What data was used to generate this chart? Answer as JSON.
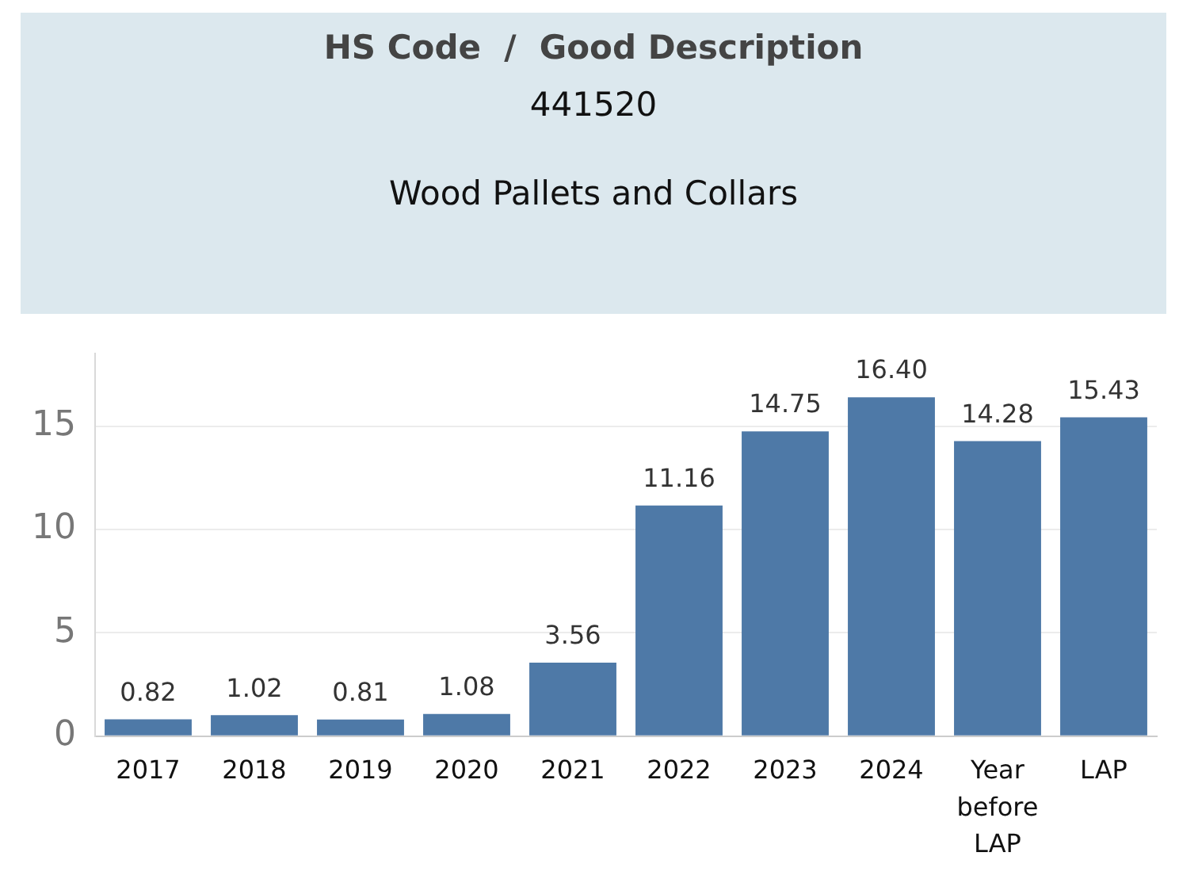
{
  "chart_data": {
    "type": "bar",
    "title": "HS Code  /  Good Description",
    "subtitle": "441520",
    "annotations": [
      "Wood Pallets and Collars"
    ],
    "categories": [
      "2017",
      "2018",
      "2019",
      "2020",
      "2021",
      "2022",
      "2023",
      "2024",
      "Year before LAP",
      "LAP"
    ],
    "values": [
      0.82,
      1.02,
      0.81,
      1.08,
      3.56,
      11.16,
      14.75,
      16.4,
      14.28,
      15.43
    ],
    "value_labels": [
      "0.82",
      "1.02",
      "0.81",
      "1.08",
      "3.56",
      "11.16",
      "14.75",
      "16.40",
      "14.28",
      "15.43"
    ],
    "color": "#4e79a7",
    "ylim": [
      0,
      18.5
    ],
    "yticks": [
      0,
      5,
      10,
      15
    ],
    "grid": "y",
    "legend": false
  }
}
